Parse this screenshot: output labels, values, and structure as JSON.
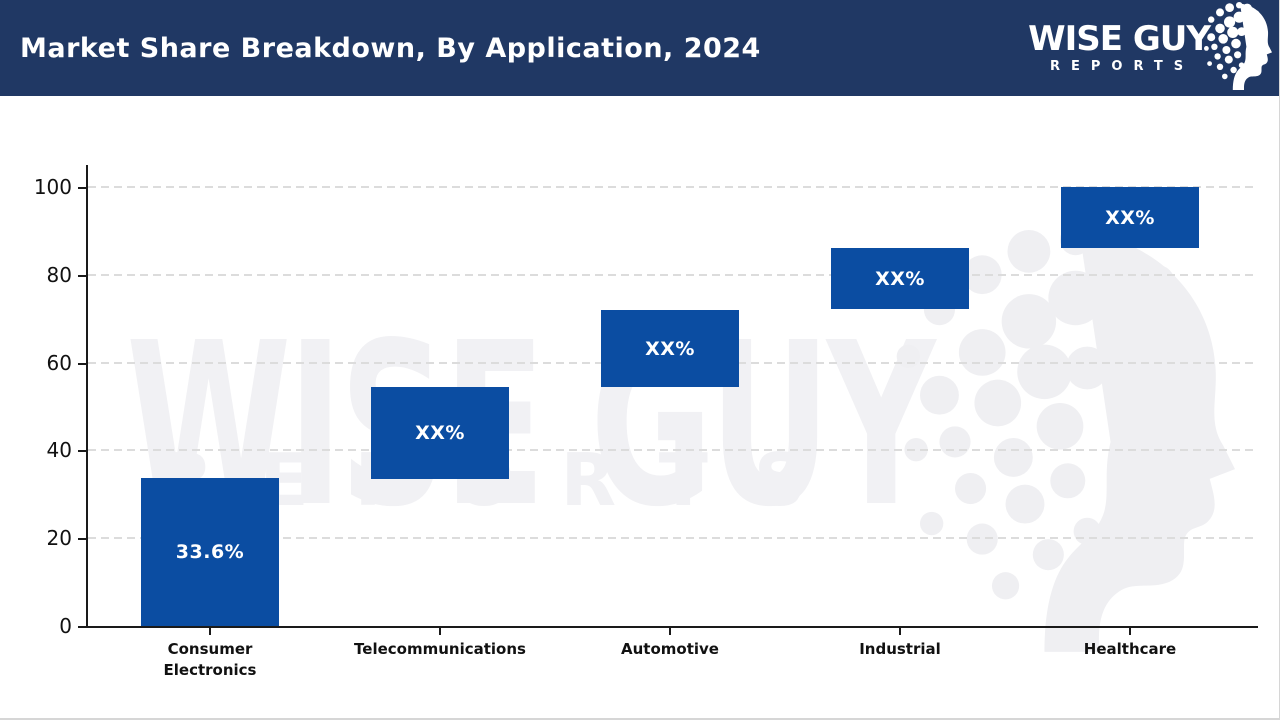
{
  "header": {
    "title": "Market Share Breakdown, By Application, 2024",
    "bg_color": "#203864",
    "logo": {
      "line1": "WISE GUY",
      "line2": "REPORTS"
    }
  },
  "watermark": {
    "line1": "WISE GUY",
    "line2": "REPORTS"
  },
  "colors": {
    "bar": "#0b4da2",
    "bar_label": "#ffffff",
    "grid": "#dcdcdc",
    "axis": "#1a1a1a",
    "axis_text": "#111111",
    "watermark": "#f1f1f4"
  },
  "chart_data": {
    "type": "bar",
    "subtype": "waterfall",
    "title": "Market Share Breakdown, By Application, 2024",
    "xlabel": "",
    "ylabel": "",
    "ylim": [
      0,
      105
    ],
    "yticks": [
      0,
      20,
      40,
      60,
      80,
      100
    ],
    "grid": "horizontal dashed",
    "legend": "none",
    "categories": [
      "Consumer Electronics",
      "Telecommunications",
      "Automotive",
      "Industrial",
      "Healthcare"
    ],
    "segments": [
      {
        "category": "Consumer Electronics",
        "lines": [
          "Consumer",
          "Electronics"
        ],
        "start": 0,
        "end": 33.6,
        "label": "33.6%"
      },
      {
        "category": "Telecommunications",
        "lines": [
          "Telecommunications"
        ],
        "start": 33.6,
        "end": 54.5,
        "label": "XX%"
      },
      {
        "category": "Automotive",
        "lines": [
          "Automotive"
        ],
        "start": 54.5,
        "end": 72,
        "label": "XX%"
      },
      {
        "category": "Industrial",
        "lines": [
          "Industrial"
        ],
        "start": 72,
        "end": 86,
        "label": "XX%"
      },
      {
        "category": "Healthcare",
        "lines": [
          "Healthcare"
        ],
        "start": 86,
        "end": 100,
        "label": "XX%"
      }
    ]
  }
}
